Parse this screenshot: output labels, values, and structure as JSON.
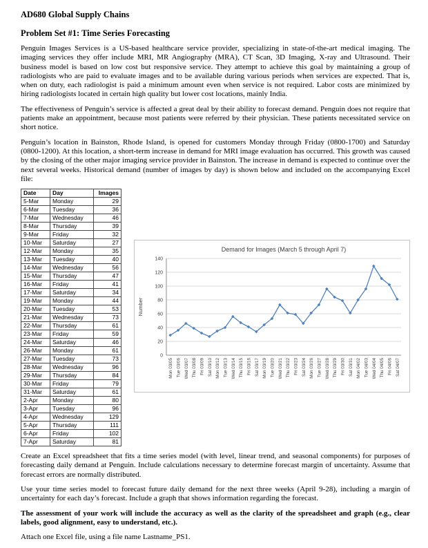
{
  "page": {
    "title": "AD680 Global Supply Chains",
    "subtitle": "Problem Set #1: Time Series Forecasting"
  },
  "paragraphs": {
    "intro": "Penguin Images Services is a US-based healthcare service provider, specializing in state-of-the-art medical imaging. The imaging services they offer include MRI, MR Angiography (MRA), CT Scan, 3D Imaging, X-ray and Ultrasound. Their business model is based on low cost but responsive service.  They attempt to achieve this goal by maintaining a group of radiologists who are paid to evaluate images and to be available during various periods when services are expected.  That is, when on duty, each radiologist is paid a minimum amount even when service is not required.  Labor costs are minimized by hiring radiologists located in certain high quality but lower cost locations, mainly India.",
    "effectiveness": "The effectiveness of Penguin’s service is affected a great deal by their ability to forecast demand.  Penguin does not require that patients make an appointment, because most patients were referred by their physician.  These patients necessitated service on short notice.",
    "location": "Penguin’s location in Bainston, Rhode Island, is opened for customers Monday through Friday (0800-1700) and Saturday (0800-1200).  At this location, a short-term increase in demand for MRI image evaluation has occurred.  This growth was caused by the closing of the other major imaging service provider in Bainston.  The increase in demand is expected to continue over the next several weeks.  Historical demand (number of images by day) is shown below and included on the accompanying Excel file:",
    "task_spreadsheet": "Create an Excel spreadsheet that fits a time series model (with level, linear trend, and seasonal components) for purposes of forecasting daily demand at Penguin.  Include calculations necessary to determine forecast margin of uncertainty.   Assume that forecast errors are normally distributed.",
    "task_forecast": "Use your time series model to forecast future daily demand for the next three weeks (April 9-28), including a margin of uncertainty for each day’s forecast.  Include a graph that shows information regarding the forecast.",
    "assessment": "The assessment of your work will include the accuracy as well as the clarity of the spreadsheet and graph (e.g., clear labels, good alignment, easy to understand, etc.).",
    "attach": "Attach one Excel file, using a file name Lastname_PS1."
  },
  "table": {
    "headers": [
      "Date",
      "Day",
      "Images"
    ],
    "rows": [
      [
        "5-Mar",
        "Monday",
        29
      ],
      [
        "6-Mar",
        "Tuesday",
        36
      ],
      [
        "7-Mar",
        "Wednesday",
        46
      ],
      [
        "8-Mar",
        "Thursday",
        39
      ],
      [
        "9-Mar",
        "Friday",
        32
      ],
      [
        "10-Mar",
        "Saturday",
        27
      ],
      [
        "12-Mar",
        "Monday",
        35
      ],
      [
        "13-Mar",
        "Tuesday",
        40
      ],
      [
        "14-Mar",
        "Wednesday",
        56
      ],
      [
        "15-Mar",
        "Thursday",
        47
      ],
      [
        "16-Mar",
        "Friday",
        41
      ],
      [
        "17-Mar",
        "Saturday",
        34
      ],
      [
        "19-Mar",
        "Monday",
        44
      ],
      [
        "20-Mar",
        "Tuesday",
        53
      ],
      [
        "21-Mar",
        "Wednesday",
        73
      ],
      [
        "22-Mar",
        "Thursday",
        61
      ],
      [
        "23-Mar",
        "Friday",
        59
      ],
      [
        "24-Mar",
        "Saturday",
        46
      ],
      [
        "26-Mar",
        "Monday",
        61
      ],
      [
        "27-Mar",
        "Tuesday",
        73
      ],
      [
        "28-Mar",
        "Wednesday",
        96
      ],
      [
        "29-Mar",
        "Thursday",
        84
      ],
      [
        "30-Mar",
        "Friday",
        79
      ],
      [
        "31-Mar",
        "Saturday",
        61
      ],
      [
        "2-Apr",
        "Monday",
        80
      ],
      [
        "3-Apr",
        "Tuesday",
        96
      ],
      [
        "4-Apr",
        "Wednesday",
        129
      ],
      [
        "5-Apr",
        "Thursday",
        111
      ],
      [
        "6-Apr",
        "Friday",
        102
      ],
      [
        "7-Apr",
        "Saturday",
        81
      ]
    ]
  },
  "chart_data": {
    "type": "line",
    "title": "Demand for Images (March 5 through April 7)",
    "xlabel": "",
    "ylabel": "Number",
    "ylim": [
      0,
      140
    ],
    "ytick_interval": 20,
    "grid": "horizontal",
    "legend": "none",
    "marker": "diamond",
    "line_color": "#4F81BD",
    "categories": [
      "Mon 03/05",
      "Tue 03/06",
      "Wed 03/07",
      "Thu 03/08",
      "Fri 03/09",
      "Sat 03/10",
      "Mon 03/12",
      "Tue 03/13",
      "Wed 03/14",
      "Thu 03/15",
      "Fri 03/16",
      "Sat 03/17",
      "Mon 03/19",
      "Tue 03/20",
      "Wed 03/21",
      "Thu 03/22",
      "Fri 03/23",
      "Sat 03/24",
      "Mon 03/26",
      "Tue 03/27",
      "Wed 03/28",
      "Thu 03/29",
      "Fri 03/30",
      "Sat 03/31",
      "Mon 04/02",
      "Tue 04/03",
      "Wed 04/04",
      "Thu 04/05",
      "Fri 04/06",
      "Sat 04/07"
    ],
    "values": [
      29,
      36,
      46,
      39,
      32,
      27,
      35,
      40,
      56,
      47,
      41,
      34,
      44,
      53,
      73,
      61,
      59,
      46,
      61,
      73,
      96,
      84,
      79,
      61,
      80,
      96,
      129,
      111,
      102,
      81
    ]
  }
}
